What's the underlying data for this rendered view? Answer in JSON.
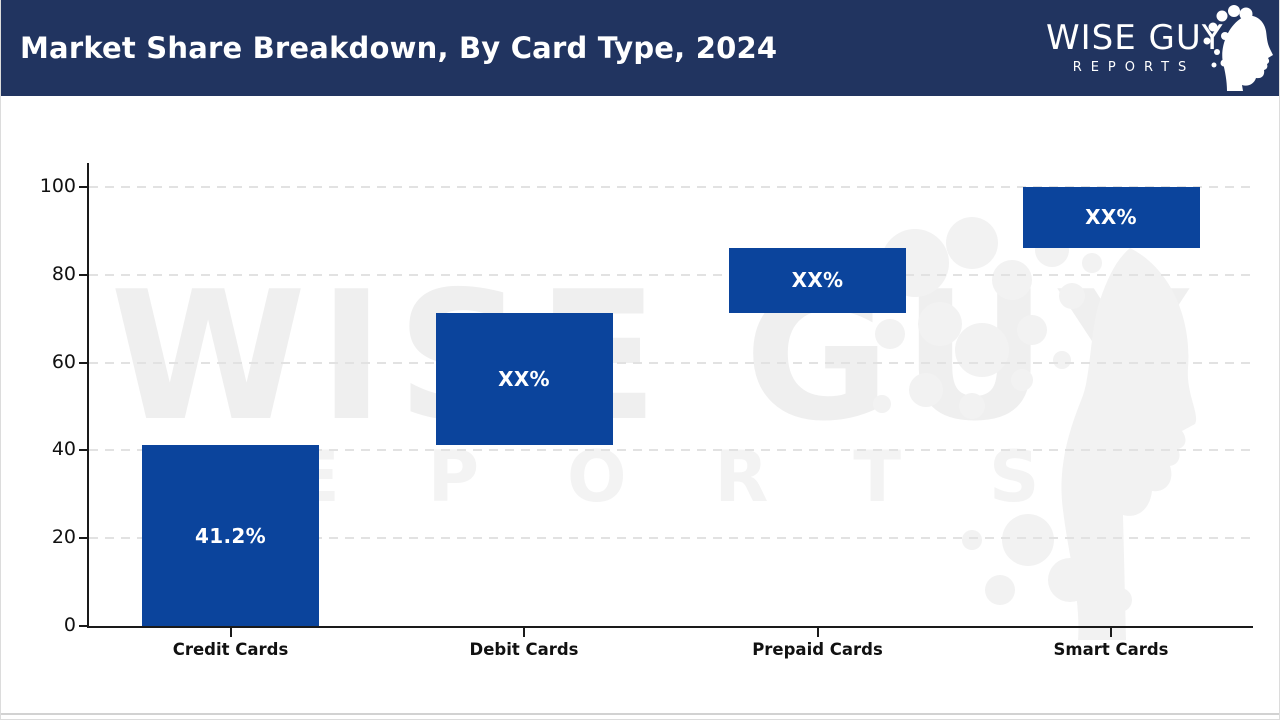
{
  "header": {
    "title": "Market Share Breakdown, By Card Type, 2024",
    "logo": {
      "line1": "WISE GUY",
      "line2": "REPORTS"
    }
  },
  "watermark": {
    "line1": "WISE GUY",
    "line2": "REPORTS"
  },
  "chart_data": {
    "type": "bar",
    "subtype": "waterfall",
    "title": "Market Share Breakdown, By Card Type, 2024",
    "categories": [
      "Credit Cards",
      "Debit Cards",
      "Prepaid Cards",
      "Smart Cards"
    ],
    "bars": [
      {
        "category": "Credit Cards",
        "start": 0,
        "end": 41.2,
        "label": "41.2%"
      },
      {
        "category": "Debit Cards",
        "start": 41.2,
        "end": 71.4,
        "label": "XX%"
      },
      {
        "category": "Prepaid Cards",
        "start": 71.4,
        "end": 86.2,
        "label": "XX%"
      },
      {
        "category": "Smart Cards",
        "start": 86.2,
        "end": 100,
        "label": "XX%"
      }
    ],
    "xlabel": "",
    "ylabel": "",
    "yticks": [
      0,
      20,
      40,
      60,
      80,
      100
    ],
    "ylim": [
      0,
      105
    ],
    "grid": "horizontal-dashed",
    "legend": "none",
    "bar_color": "#0b449c",
    "value_label_color": "#ffffff"
  },
  "colors": {
    "header_bg": "#213460",
    "bar": "#0b449c",
    "grid": "#e2e2e2",
    "axis": "#1a1a1a",
    "watermark": "#f0f0f0"
  }
}
